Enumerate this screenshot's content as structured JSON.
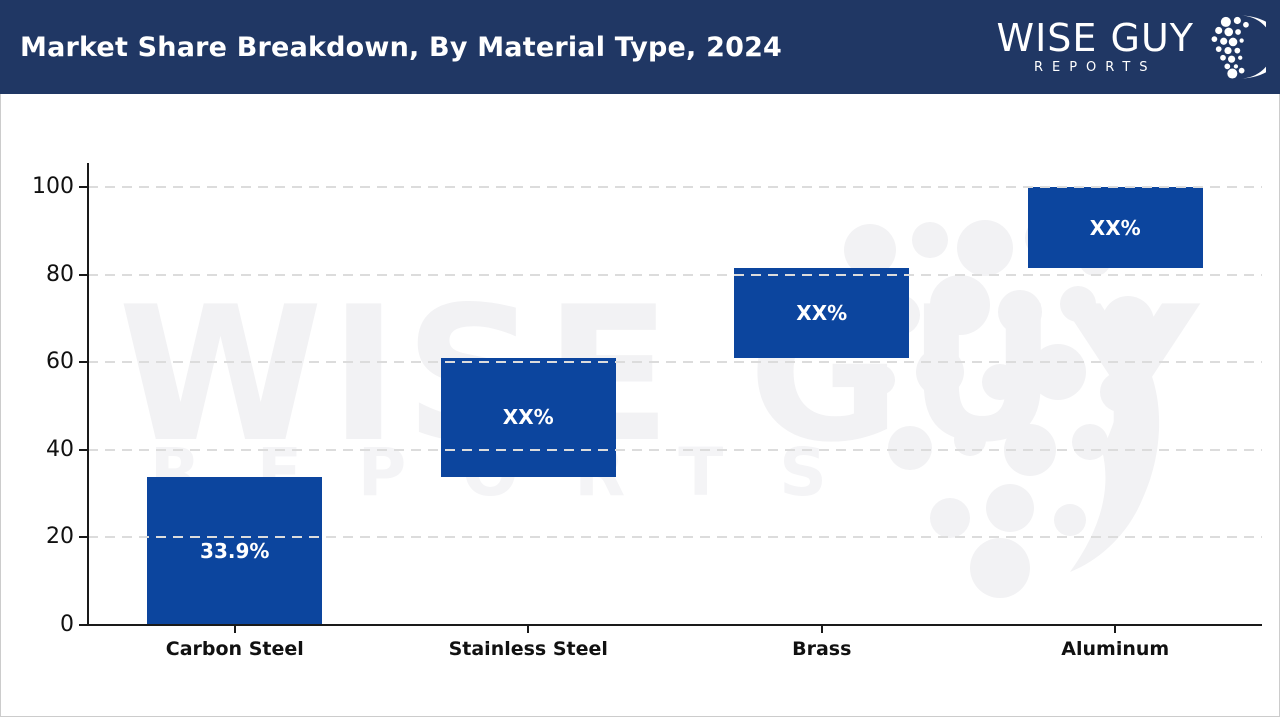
{
  "header": {
    "title": "Market Share Breakdown, By Material Type, 2024",
    "bg_color": "#203764",
    "logo": {
      "line1": "WISE GUY",
      "line2": "REPORTS"
    }
  },
  "watermark": {
    "line1": "WISE GUY",
    "line2": "REPORTS"
  },
  "chart_data": {
    "type": "bar",
    "variant": "waterfall",
    "title": "Market Share Breakdown, By Material Type, 2024",
    "categories": [
      "Carbon Steel",
      "Stainless Steel",
      "Brass",
      "Aluminum"
    ],
    "segments": [
      {
        "category": "Carbon Steel",
        "start": 0,
        "end": 33.9,
        "size": 33.9,
        "label": "33.9%"
      },
      {
        "category": "Stainless Steel",
        "start": 33.9,
        "end": 61.0,
        "size": 27.1,
        "label": "XX%"
      },
      {
        "category": "Brass",
        "start": 61.0,
        "end": 81.5,
        "size": 20.5,
        "label": "XX%"
      },
      {
        "category": "Aluminum",
        "start": 81.5,
        "end": 100.0,
        "size": 18.5,
        "label": "XX%"
      }
    ],
    "yticks": [
      0,
      20,
      40,
      60,
      80,
      100
    ],
    "ylim": [
      0,
      105.5
    ],
    "grid": "horizontal-dashed",
    "legend": "none",
    "xlabel": "",
    "ylabel": "",
    "bar_color": "#0c459e",
    "bar_label_color": "#ffffff",
    "axis_color": "#1a1a1a",
    "gridline_color": "#dcdcdc"
  }
}
